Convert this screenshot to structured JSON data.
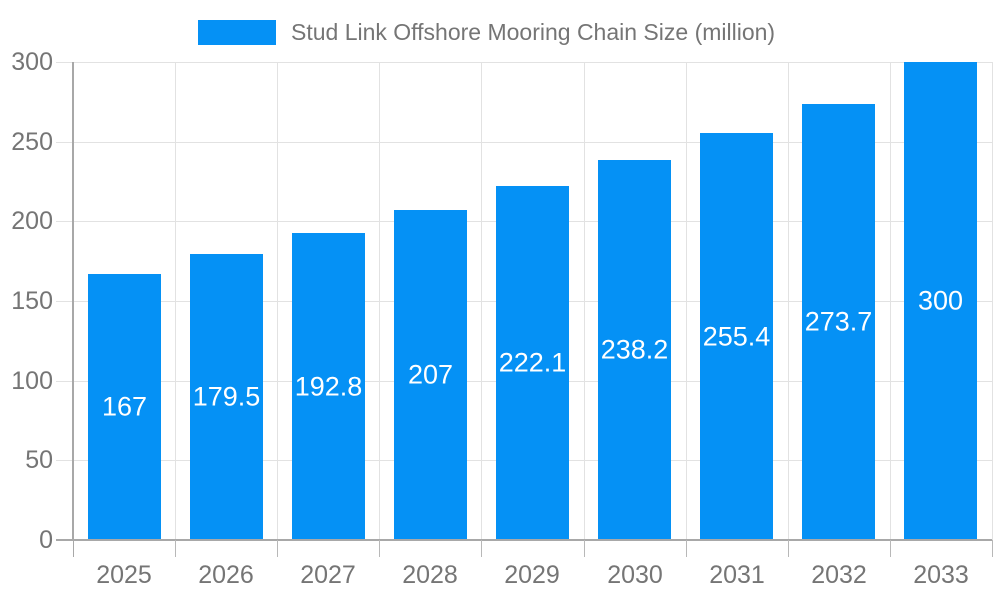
{
  "chart_data": {
    "type": "bar",
    "title": "Stud Link Offshore Mooring Chain Size (million)",
    "legend": {
      "label": "Stud Link Offshore Mooring Chain Size (million)",
      "position": "top"
    },
    "categories": [
      "2025",
      "2026",
      "2027",
      "2028",
      "2029",
      "2030",
      "2031",
      "2032",
      "2033"
    ],
    "values": [
      167,
      179.5,
      192.8,
      207,
      222.1,
      238.2,
      255.4,
      273.7,
      300
    ],
    "series": [
      {
        "name": "Stud Link Offshore Mooring Chain Size (million)",
        "values": [
          167,
          179.5,
          192.8,
          207,
          222.1,
          238.2,
          255.4,
          273.7,
          300
        ]
      }
    ],
    "xlabel": "",
    "ylabel": "",
    "ylim": [
      0,
      300
    ],
    "y_ticks": [
      0,
      50,
      100,
      150,
      200,
      250,
      300
    ],
    "grid": true,
    "value_labels_shown": true,
    "colors": {
      "bar": "#0591f5",
      "grid": "#e2e2e2",
      "axis": "#a8a8a8",
      "boundary_tick": "#b8b8b8",
      "axis_text": "#757575",
      "legend_text": "#757575",
      "value_text": "#ffffff",
      "background": "#ffffff"
    }
  }
}
